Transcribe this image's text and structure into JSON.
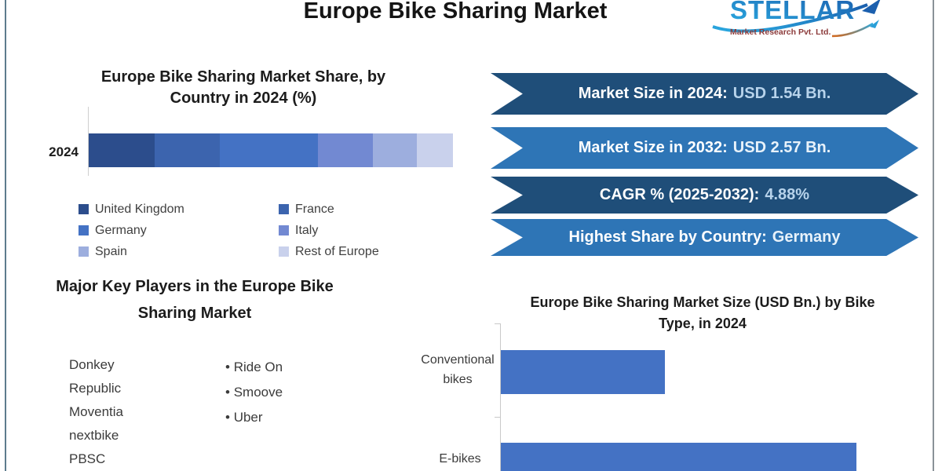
{
  "page": {
    "title": "Europe Bike Sharing Market"
  },
  "logo": {
    "name": "STELLAR",
    "subtitle": "Market Research Pvt. Ltd.",
    "brand_color": "#1b6ab8",
    "subtitle_color": "#8c3b3b"
  },
  "banners": [
    {
      "label": "Market Size in 2024:",
      "value": "USD 1.54 Bn.",
      "style": "dark"
    },
    {
      "label": "Market Size in 2032:",
      "value": "USD 2.57 Bn.",
      "style": "light"
    },
    {
      "label": "CAGR % (2025-2032):",
      "value": "4.88%",
      "style": "dark"
    },
    {
      "label": "Highest Share by Country:",
      "value": "Germany",
      "style": "light"
    }
  ],
  "banner_colors": {
    "dark": "#1f4e79",
    "light": "#2e75b6",
    "label_text": "#ffffff",
    "value_text_dark": "#b7d3eb",
    "value_text_light": "#e8f2fa"
  },
  "key_players": {
    "title": "Major Key Players in the Europe Bike Sharing Market",
    "column1": [
      "Donkey Republic",
      "Moventia",
      "nextbike",
      "PBSC"
    ],
    "column2": [
      "Ride On",
      "Smoove",
      "Uber"
    ]
  },
  "chart_data": [
    {
      "type": "bar",
      "subtype": "stacked-horizontal",
      "title": "Europe Bike Sharing Market Share, by Country in 2024 (%)",
      "categories": [
        "2024"
      ],
      "unit": "%",
      "xlim": [
        0,
        100
      ],
      "legend_position": "bottom",
      "series": [
        {
          "name": "United Kingdom",
          "value": 18,
          "color": "#2c4d8c"
        },
        {
          "name": "France",
          "value": 18,
          "color": "#3c64ae"
        },
        {
          "name": "Germany",
          "value": 27,
          "color": "#4472c4"
        },
        {
          "name": "Italy",
          "value": 15,
          "color": "#7289d2"
        },
        {
          "name": "Spain",
          "value": 12,
          "color": "#9daede"
        },
        {
          "name": "Rest of Europe",
          "value": 10,
          "color": "#c9d1ec"
        }
      ]
    },
    {
      "type": "bar",
      "subtype": "horizontal",
      "title": "Europe Bike Sharing Market Size (USD Bn.) by Bike Type, in 2024",
      "categories": [
        "Conventional bikes",
        "E-bikes"
      ],
      "values": [
        0.48,
        1.04
      ],
      "bar_color": "#4472c4",
      "unit": "USD Bn.",
      "xlim": [
        0,
        1.1
      ]
    }
  ]
}
